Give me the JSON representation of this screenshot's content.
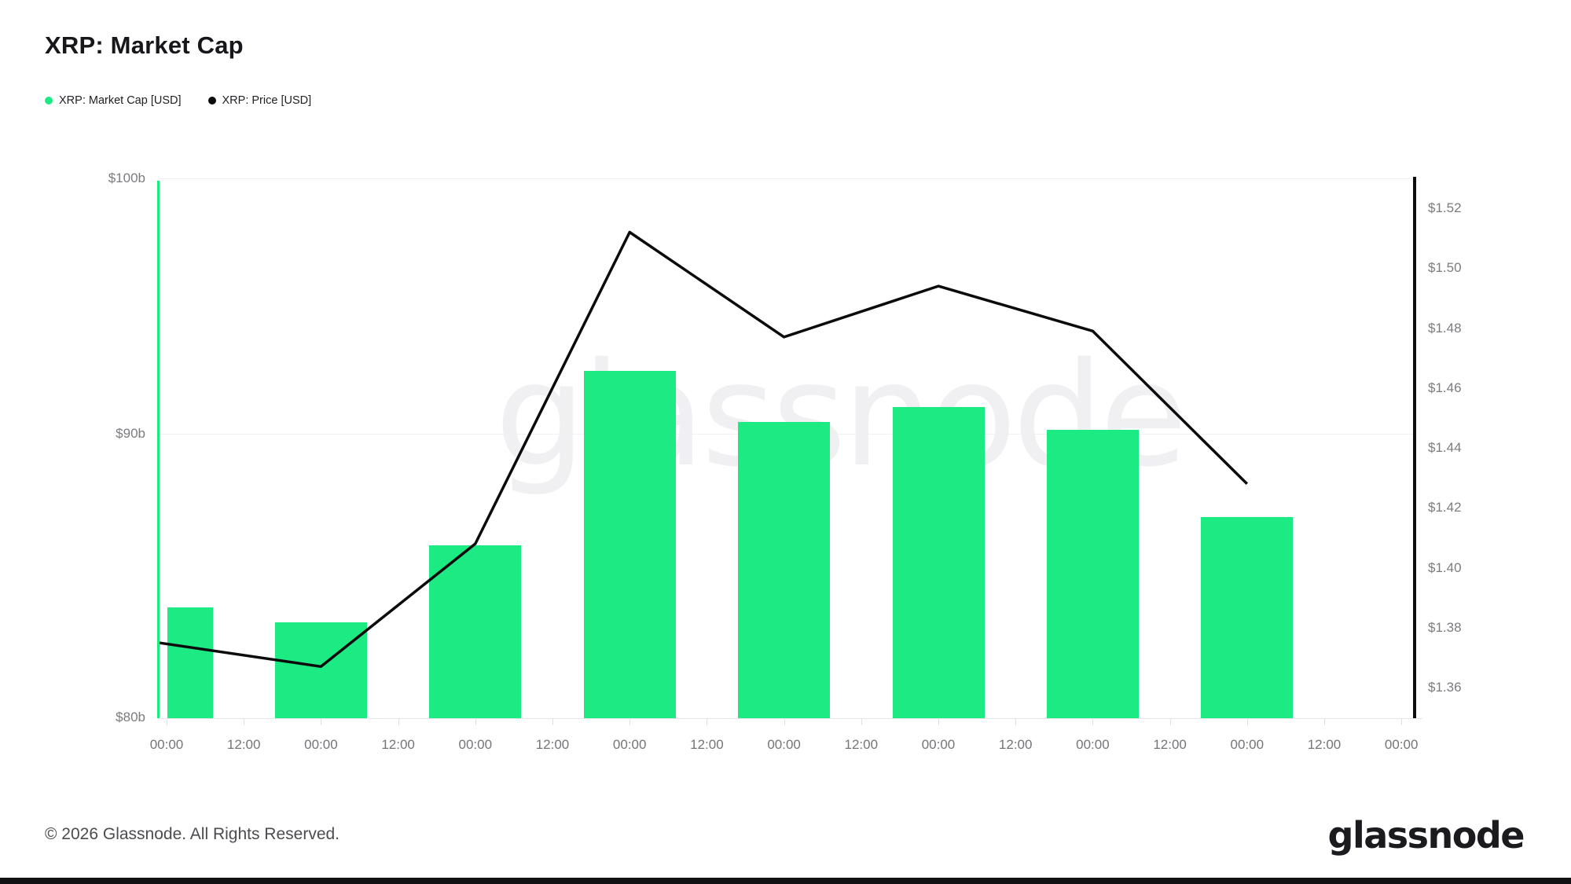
{
  "title": "XRP: Market Cap",
  "legend": [
    {
      "label": "XRP: Market Cap [USD]",
      "color": "#1CEB84"
    },
    {
      "label": "XRP: Price [USD]",
      "color": "#0b0b0d"
    }
  ],
  "watermark": "glassnode",
  "footer": {
    "copyright": "© 2026 Glassnode. All Rights Reserved.",
    "logo": "glassnode"
  },
  "chart_data": {
    "type": "combo",
    "title": "XRP: Market Cap",
    "series": [
      {
        "name": "XRP: Market Cap [USD]",
        "type": "bar",
        "axis": "left",
        "unit": "billion USD",
        "color": "#1CEB84",
        "values": [
          83.3,
          82.7,
          85.7,
          92.5,
          90.5,
          91.1,
          90.2,
          86.8
        ]
      },
      {
        "name": "XRP: Price [USD]",
        "type": "line",
        "axis": "right",
        "unit": "USD",
        "color": "#0b0b0d",
        "values": [
          1.375,
          1.367,
          1.408,
          1.512,
          1.477,
          1.494,
          1.479,
          1.428
        ]
      }
    ],
    "x_axis": {
      "tick_labels": [
        "00:00",
        "12:00",
        "00:00",
        "12:00",
        "00:00",
        "12:00",
        "00:00",
        "12:00",
        "00:00",
        "12:00",
        "00:00",
        "12:00",
        "00:00",
        "12:00",
        "00:00",
        "12:00",
        "00:00"
      ],
      "data_points_at": "every 00:00 tick, 8 daily points",
      "grid": false
    },
    "y_axis_left": {
      "tick_labels": [
        "$100b",
        "$90b",
        "$80b"
      ],
      "tick_values_billion": [
        100,
        90,
        80
      ],
      "grid": true
    },
    "y_axis_right": {
      "tick_labels": [
        "$1.52",
        "$1.50",
        "$1.48",
        "$1.46",
        "$1.44",
        "$1.42",
        "$1.40",
        "$1.38",
        "$1.36"
      ],
      "tick_values": [
        1.52,
        1.5,
        1.48,
        1.46,
        1.44,
        1.42,
        1.4,
        1.38,
        1.36
      ],
      "grid": false
    },
    "legend_position": "top-left"
  }
}
